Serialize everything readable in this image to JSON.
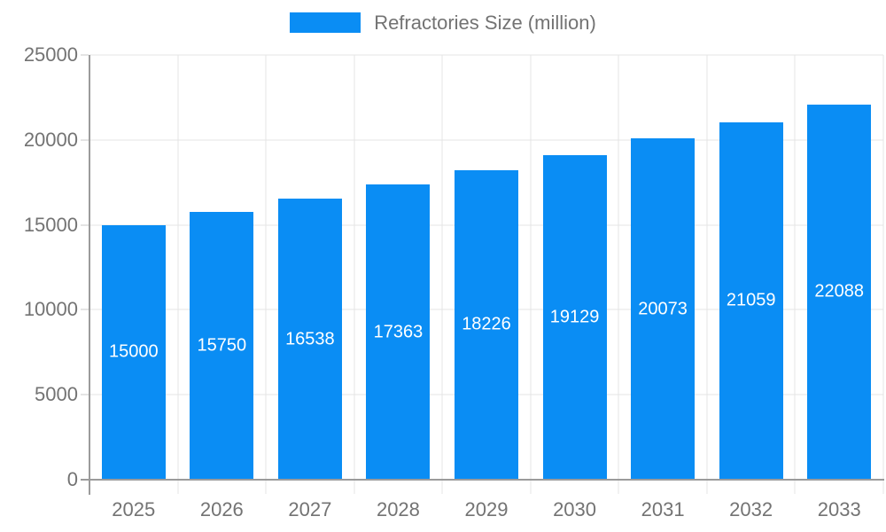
{
  "legend": {
    "label": "Refractories Size (million)"
  },
  "colors": {
    "bar": "#0a8df4",
    "bar_label": "#ffffff",
    "axis_text": "#737373",
    "gridline": "#e4e4e4",
    "axis_line": "#9b9b9b",
    "background": "#ffffff"
  },
  "chart_data": {
    "type": "bar",
    "title": "",
    "legend": "Refractories Size (million)",
    "legend_position": "top-center",
    "categories": [
      "2025",
      "2026",
      "2027",
      "2028",
      "2029",
      "2030",
      "2031",
      "2032",
      "2033"
    ],
    "values": [
      15000,
      15750,
      16538,
      17363,
      18226,
      19129,
      20073,
      21059,
      22088
    ],
    "data_labels": "inside-bar-centered-white",
    "xlabel": "",
    "ylabel": "",
    "yticks": [
      0,
      5000,
      10000,
      15000,
      20000,
      25000
    ],
    "ylim": [
      0,
      25000
    ],
    "grid": true
  }
}
